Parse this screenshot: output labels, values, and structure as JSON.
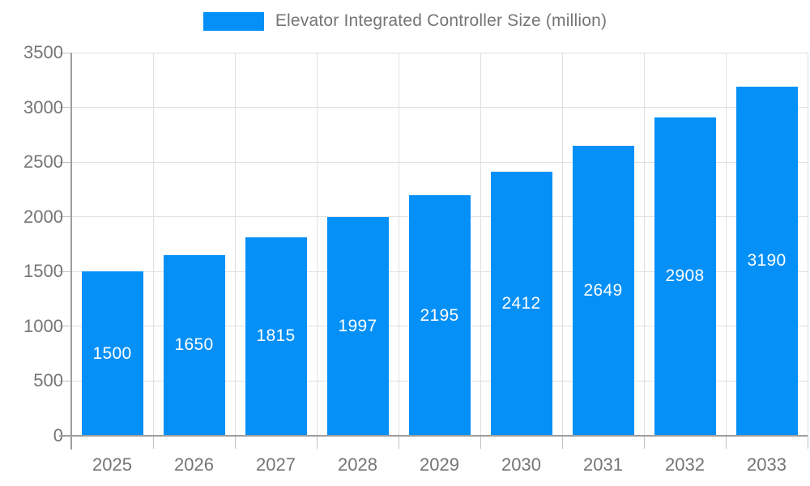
{
  "legend": {
    "label": "Elevator Integrated Controller Size (million)",
    "swatch_color": "#0590f8"
  },
  "chart_data": {
    "type": "bar",
    "title": "Elevator Integrated Controller Size (million)",
    "categories": [
      "2025",
      "2026",
      "2027",
      "2028",
      "2029",
      "2030",
      "2031",
      "2032",
      "2033"
    ],
    "series": [
      {
        "name": "Elevator Integrated Controller Size (million)",
        "values": [
          1500,
          1650,
          1815,
          1997,
          2195,
          2412,
          2649,
          2908,
          3190
        ]
      }
    ],
    "bar_labels": [
      "1500",
      "1650",
      "1815",
      "1997",
      "2195",
      "2412",
      "2649",
      "2908",
      "3190"
    ],
    "xlabel": "",
    "ylabel": "",
    "ylim": [
      0,
      3500
    ],
    "y_ticks": [
      0,
      500,
      1000,
      1500,
      2000,
      2500,
      3000,
      3500
    ],
    "grid": true,
    "legend_position": "top",
    "colors": {
      "bar": "#0590f8",
      "bar_label_text": "#ffffff",
      "axis_text": "#757575",
      "gridline": "#e0e0e0",
      "axis_line": "#9e9e9e",
      "tick": "#c2c2c2",
      "background": "#ffffff"
    }
  }
}
